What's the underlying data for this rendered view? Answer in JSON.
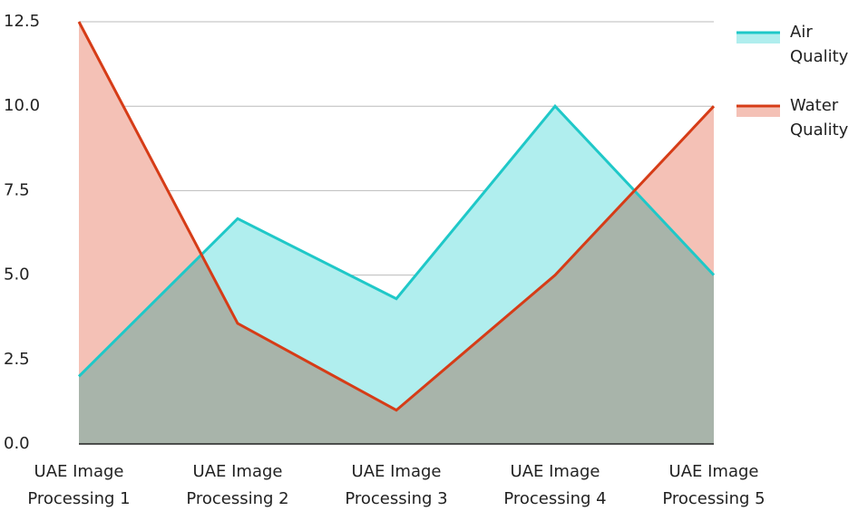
{
  "chart_data": {
    "type": "area",
    "categories": [
      "UAE Image Processing 1",
      "UAE Image Processing 2",
      "UAE Image Processing 3",
      "UAE Image Processing 4",
      "UAE Image Processing 5"
    ],
    "series": [
      {
        "name": "Air Quality",
        "color": "#1fc8c8",
        "fill": "#b0eeee",
        "values": [
          2.0,
          6.67,
          4.3,
          10.0,
          5.0
        ]
      },
      {
        "name": "Water Quality",
        "color": "#d63c17",
        "fill": "#f4c1b6",
        "values": [
          12.5,
          3.57,
          1.0,
          5.0,
          10.0
        ]
      }
    ],
    "ylim": [
      0,
      12.5
    ],
    "yticks": [
      {
        "value": 0,
        "label": "0.0"
      },
      2.5,
      {
        "value": 5,
        "label": "5.0"
      },
      7.5,
      {
        "value": 10,
        "label": "10.0"
      },
      12.5
    ],
    "grid": true,
    "legend": "top-right"
  }
}
